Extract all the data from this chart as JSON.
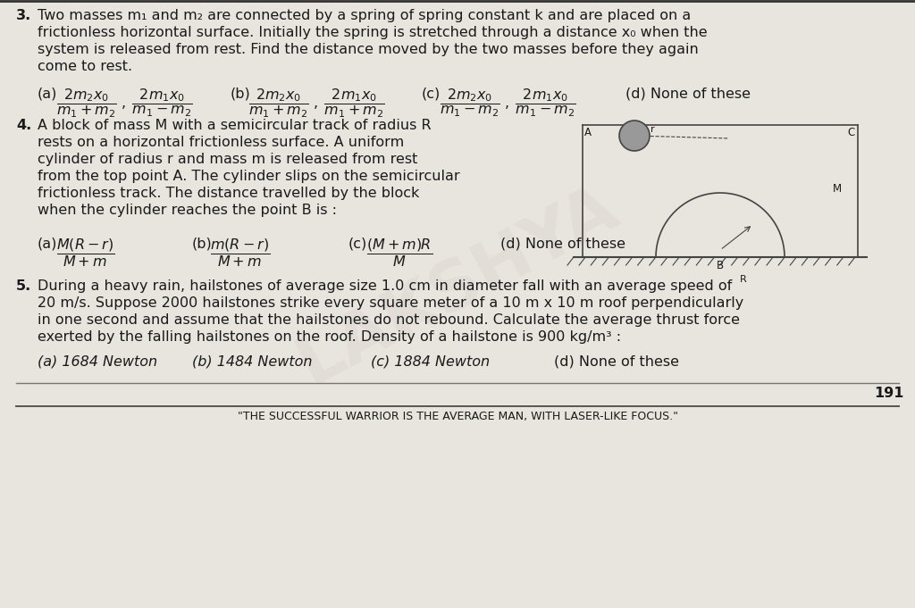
{
  "bg_color": "#d4cfc9",
  "text_color": "#1a1a1a",
  "page_bg": "#e8e4de",
  "q3_number": "3.",
  "q3_text_line1": "Two masses m₁ and m₂ are connected by a spring of spring constant k and are placed on a",
  "q3_text_line2": "frictionless horizontal surface. Initially the spring is stretched through a distance x₀ when the",
  "q3_text_line3": "system is released from rest. Find the distance moved by the two masses before they again",
  "q3_text_line4": "come to rest.",
  "q4_number": "4.",
  "q4_text_line1": "A block of mass M with a semicircular track of radius R",
  "q4_text_line2": "rests on a horizontal frictionless surface. A uniform",
  "q4_text_line3": "cylinder of radius r and mass m is released from rest",
  "q4_text_line4": "from the top point A. The cylinder slips on the semicircular",
  "q4_text_line5": "frictionless track. The distance travelled by the block",
  "q4_text_line6": "when the cylinder reaches the point B is :",
  "q5_number": "5.",
  "q5_text_line1": "During a heavy rain, hailstones of average size 1.0 cm in diameter fall with an average speed of",
  "q5_text_line2": "20 m/s. Suppose 2000 hailstones strike every square meter of a 10 m x 10 m roof perpendicularly",
  "q5_text_line3": "in one second and assume that the hailstones do not rebound. Calculate the average thrust force",
  "q5_text_line4": "exerted by the falling hailstones on the roof. Density of a hailstone is 900 kg/m³ :",
  "page_number": "191",
  "footer_text": "\"THE SUCCESSFUL WARRIOR IS THE AVERAGE MAN, WITH LASER-LIKE FOCUS.\"",
  "watermark_text": "LAKSHYA",
  "font_size_main": 11.5,
  "diagram_color": "#444444",
  "ground_color": "#444444"
}
